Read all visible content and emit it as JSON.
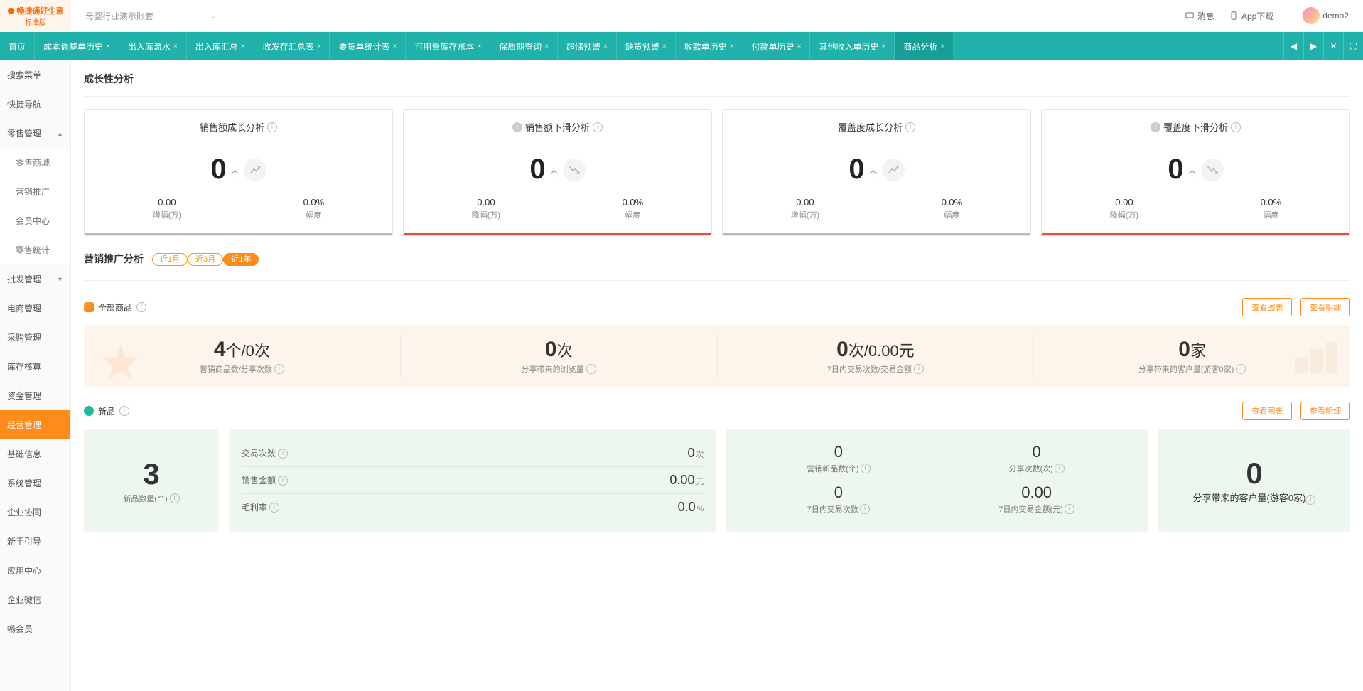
{
  "top": {
    "logo_line1": "⬣ 畅捷通好生意",
    "logo_line2": "标准版",
    "account": "母婴行业演示账套",
    "msg": "消息",
    "download": "App下载",
    "user": "demo2"
  },
  "tabs": {
    "home": "首页",
    "items": [
      "成本调整单历史",
      "出入库流水",
      "出入库汇总",
      "收发存汇总表",
      "要货单统计表",
      "可用量库存账本",
      "保质期查询",
      "超储预警",
      "缺货预警",
      "收款单历史",
      "付款单历史",
      "其他收入单历史",
      "商品分析"
    ],
    "active_index": 12
  },
  "sidebar": {
    "items": [
      {
        "label": "搜索菜单",
        "type": "main"
      },
      {
        "label": "快捷导航",
        "type": "main"
      },
      {
        "label": "零售管理",
        "type": "main",
        "arrow": "▲"
      },
      {
        "label": "零售商城",
        "type": "sub"
      },
      {
        "label": "营销推广",
        "type": "sub"
      },
      {
        "label": "会员中心",
        "type": "sub"
      },
      {
        "label": "零售统计",
        "type": "sub"
      },
      {
        "label": "批发管理",
        "type": "main",
        "arrow": "▼"
      },
      {
        "label": "电商管理",
        "type": "main"
      },
      {
        "label": "采购管理",
        "type": "main"
      },
      {
        "label": "库存核算",
        "type": "main"
      },
      {
        "label": "资金管理",
        "type": "main"
      },
      {
        "label": "经营管理",
        "type": "main",
        "active": true
      },
      {
        "label": "基础信息",
        "type": "main"
      },
      {
        "label": "系统管理",
        "type": "main"
      },
      {
        "label": "企业协同",
        "type": "main"
      },
      {
        "label": "新手引导",
        "type": "main"
      },
      {
        "label": "应用中心",
        "type": "main"
      },
      {
        "label": "企业微信",
        "type": "main"
      },
      {
        "label": "畅会员",
        "type": "main"
      }
    ]
  },
  "growth": {
    "section_title": "成长性分析",
    "cards": [
      {
        "title": "销售额成长分析",
        "warn": false,
        "big": "0",
        "unit": "个",
        "trend": "up",
        "v1": "0.00",
        "l1": "增幅(万)",
        "v2": "0.0%",
        "l2": "幅度",
        "line": "grey"
      },
      {
        "title": "销售额下滑分析",
        "warn": true,
        "big": "0",
        "unit": "个",
        "trend": "down",
        "v1": "0.00",
        "l1": "降幅(万)",
        "v2": "0.0%",
        "l2": "幅度",
        "line": "red"
      },
      {
        "title": "覆盖度成长分析",
        "warn": false,
        "big": "0",
        "unit": "个",
        "trend": "up",
        "v1": "0.00",
        "l1": "增幅(万)",
        "v2": "0.0%",
        "l2": "幅度",
        "line": "grey"
      },
      {
        "title": "覆盖度下滑分析",
        "warn": true,
        "big": "0",
        "unit": "个",
        "trend": "down",
        "v1": "0.00",
        "l1": "降幅(万)",
        "v2": "0.0%",
        "l2": "幅度",
        "line": "red"
      }
    ]
  },
  "marketing": {
    "title": "营销推广分析",
    "periods": [
      "近1月",
      "近3月",
      "近1年"
    ],
    "active_period": 2,
    "all_products": {
      "label": "全部商品",
      "btn_chart": "查看图表",
      "btn_detail": "查看明细",
      "cols": [
        {
          "big_n": "4",
          "big_suffix": "个/0次",
          "desc": "营销商品数/分享次数"
        },
        {
          "big_n": "0",
          "big_suffix": "次",
          "desc": "分享带来的浏览量"
        },
        {
          "big_n": "0",
          "big_suffix": "次/0.00元",
          "desc": "7日内交易次数/交易金额"
        },
        {
          "big_n": "0",
          "big_suffix": "家",
          "desc": "分享带来的客户量(游客0家)"
        }
      ]
    },
    "new_products": {
      "label": "新品",
      "btn_chart": "查看图表",
      "btn_detail": "查看明细",
      "left_big": "3",
      "left_label": "新品数量(个)",
      "rows": [
        {
          "k": "交易次数",
          "v": "0",
          "u": "次"
        },
        {
          "k": "销售金额",
          "v": "0.00",
          "u": "元"
        },
        {
          "k": "毛利率",
          "v": "0.0",
          "u": "%"
        }
      ],
      "minis": [
        {
          "n": "0",
          "l": "营销新品数(个)"
        },
        {
          "n": "0",
          "l": "分享次数(次)"
        },
        {
          "n": "0",
          "l": "7日内交易次数"
        },
        {
          "n": "0.00",
          "l": "7日内交易金额(元)"
        }
      ],
      "right_big": "0",
      "right_label": "分享带来的客户量(游客0家)"
    }
  }
}
